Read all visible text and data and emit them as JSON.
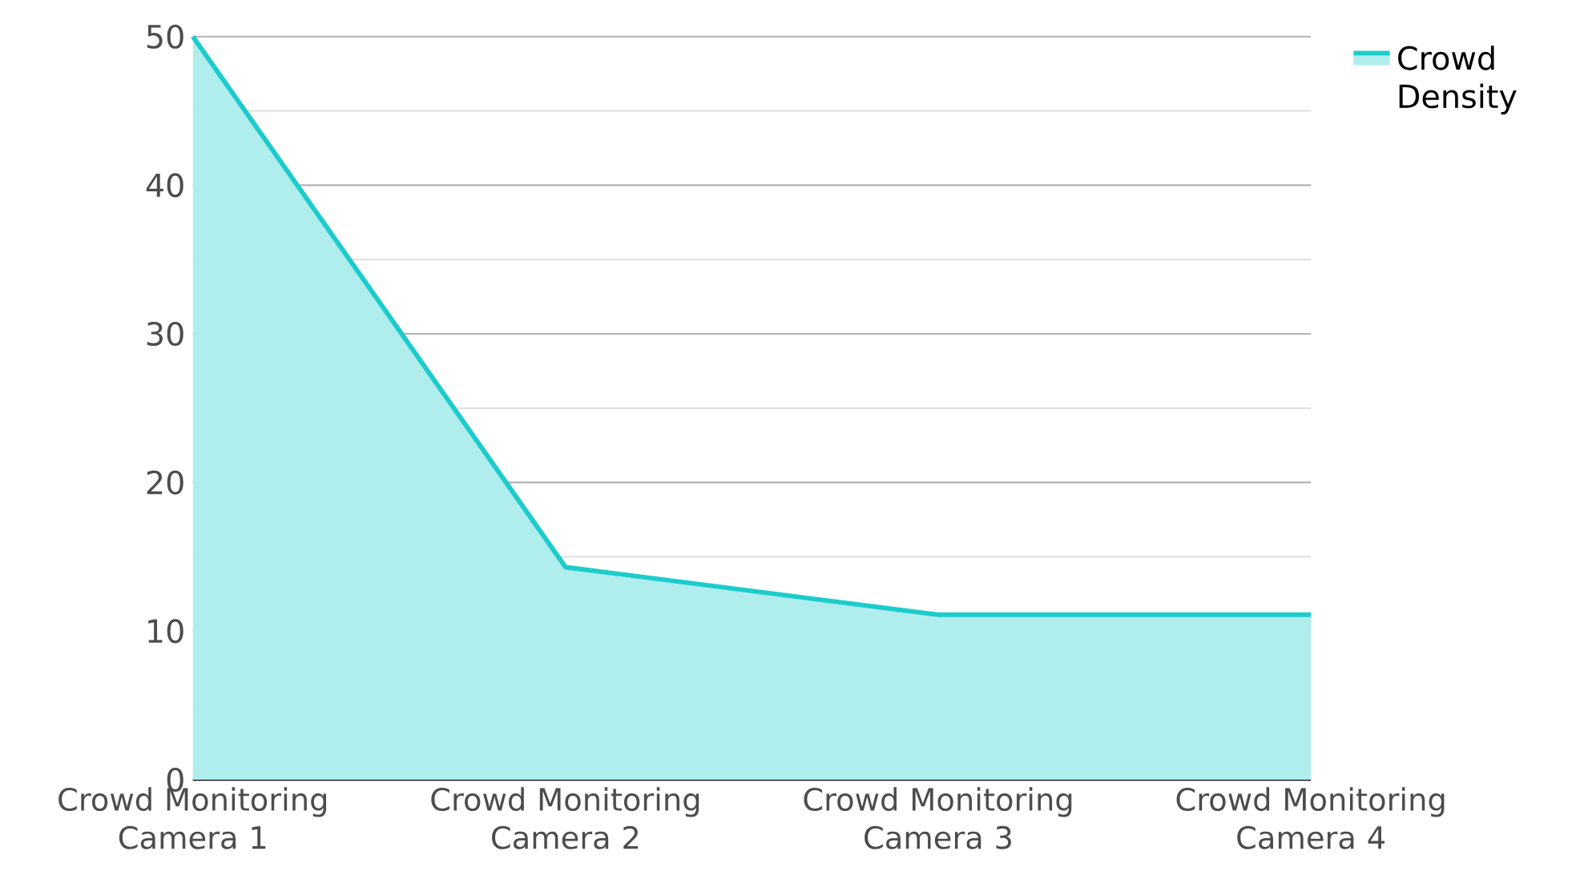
{
  "chart_data": {
    "type": "area",
    "categories": [
      "Crowd Monitoring Camera 1",
      "Crowd Monitoring Camera 2",
      "Crowd Monitoring Camera 3",
      "Crowd Monitoring Camera 4"
    ],
    "series": [
      {
        "name": "Crowd Density",
        "color": "#1ccccc",
        "values": [
          50,
          14.3,
          11.1,
          11.1
        ]
      }
    ],
    "ylim": [
      0,
      50
    ],
    "yticks": [
      0,
      10,
      20,
      30,
      40,
      50
    ],
    "grid": "y",
    "legend": "top right"
  }
}
